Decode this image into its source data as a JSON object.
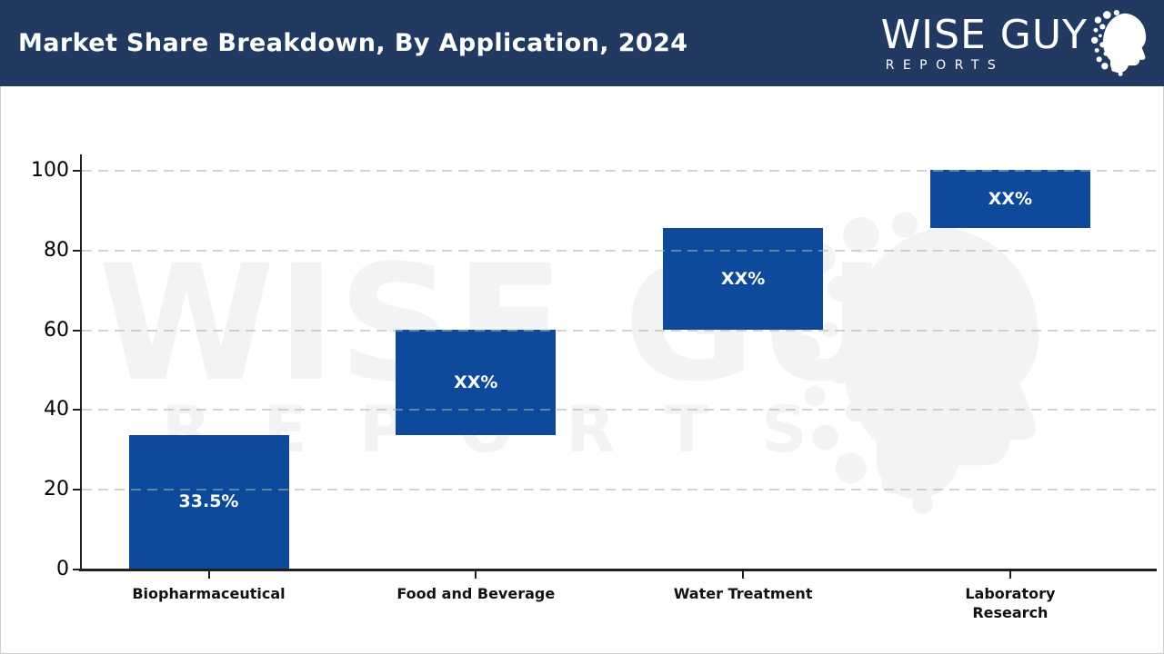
{
  "header": {
    "title": "Market Share Breakdown, By Application, 2024"
  },
  "logo": {
    "name_top": "WISE GUY",
    "name_bottom": "REPORTS"
  },
  "watermark": {
    "line1": "WISE GUY",
    "line2": "REPORTS"
  },
  "chart_data": {
    "type": "bar",
    "subtype": "waterfall",
    "title": "Market Share Breakdown, By Application, 2024",
    "xlabel": "",
    "ylabel": "",
    "categories": [
      "Biopharmaceutical",
      "Food and Beverage",
      "Water Treatment",
      "Laboratory Research"
    ],
    "tick_labels": [
      "Biopharmaceutical",
      "Food and Beverage",
      "Water Treatment",
      "Laboratory\nResearch"
    ],
    "segments": [
      {
        "category": "Biopharmaceutical",
        "start": 0,
        "end": 33.5,
        "label": "33.5%"
      },
      {
        "category": "Food and Beverage",
        "start": 33.5,
        "end": 60,
        "label": "XX%"
      },
      {
        "category": "Water Treatment",
        "start": 60,
        "end": 85.5,
        "label": "XX%"
      },
      {
        "category": "Laboratory Research",
        "start": 85.5,
        "end": 100,
        "label": "XX%"
      }
    ],
    "known_values": {
      "Biopharmaceutical": 33.5
    },
    "hidden_value_placeholder": "XX%",
    "yticks": [
      0,
      20,
      40,
      60,
      80,
      100
    ],
    "ylim": [
      0,
      105
    ],
    "grid": "horizontal dashed, drawn above bars",
    "legend": "none",
    "bar_color": "#0d4a9c"
  },
  "colors": {
    "header_bg": "#223962",
    "bar": "#0d4a9c",
    "axis": "#1f1f1f",
    "grid": "#d9d9d9",
    "watermark": "#f2f3f5",
    "title_text": "#ffffff",
    "bar_label_text": "#ffffff"
  }
}
